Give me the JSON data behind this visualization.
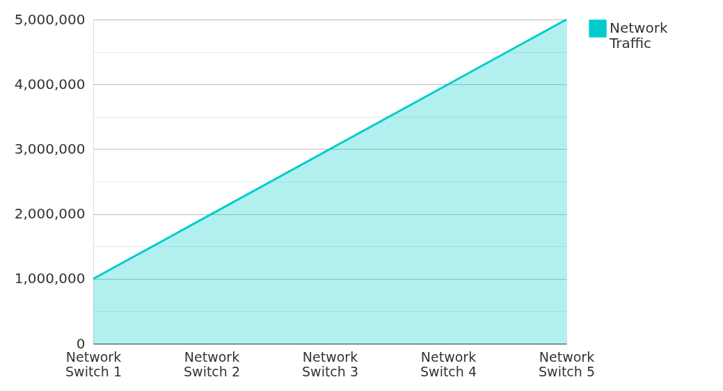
{
  "chart_data": {
    "type": "area",
    "categories": [
      "Network Switch 1",
      "Network Switch 2",
      "Network Switch 3",
      "Network Switch 4",
      "Network Switch 5"
    ],
    "series": [
      {
        "name": "Network Traffic",
        "color": "#00cccc",
        "values": [
          1000000,
          2000000,
          3000000,
          4000000,
          5000000
        ]
      }
    ],
    "ylim": [
      0,
      5000000
    ],
    "yticks": [
      {
        "value": 0,
        "label": "0"
      },
      {
        "value": 500000,
        "label": null
      },
      {
        "value": 1000000,
        "label": "1,000,000"
      },
      {
        "value": 1500000,
        "label": null
      },
      {
        "value": 2000000,
        "label": "2,000,000"
      },
      {
        "value": 2500000,
        "label": null
      },
      {
        "value": 3000000,
        "label": "3,000,000"
      },
      {
        "value": 3500000,
        "label": null
      },
      {
        "value": 4000000,
        "label": "4,000,000"
      },
      {
        "value": 4500000,
        "label": null
      },
      {
        "value": 5000000,
        "label": "5,000,000"
      }
    ],
    "grid": "y",
    "legend": "top right"
  }
}
